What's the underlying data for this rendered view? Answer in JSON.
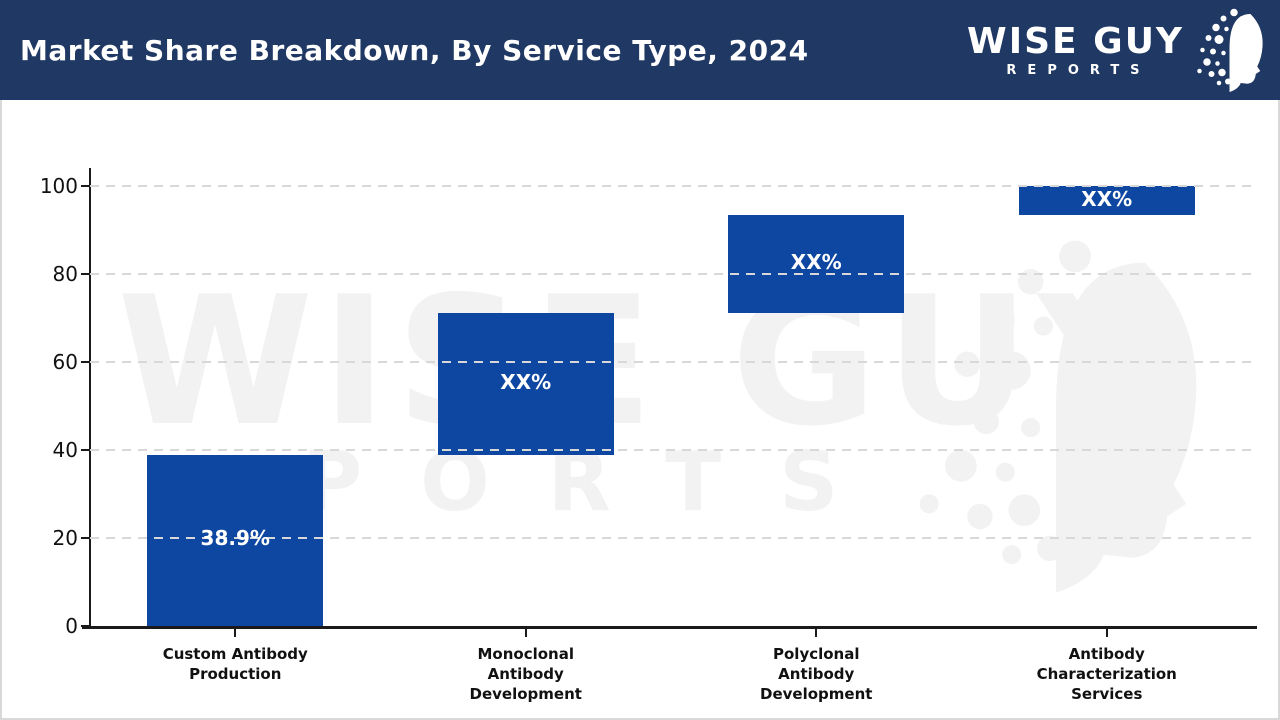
{
  "header": {
    "title": "Market Share Breakdown, By Service Type, 2024",
    "bg_color": "#1f3864",
    "logo": {
      "line1": "WISE GUY",
      "line2": "REPORTS"
    }
  },
  "watermark": {
    "line1": "WISE GUY",
    "line2": "PORTS"
  },
  "chart_data": {
    "type": "bar",
    "subtype": "waterfall-stacked-percentage",
    "title": "Market Share Breakdown, By Service Type, 2024",
    "categories": [
      "Custom Antibody Production",
      "Monoclonal Antibody Development",
      "Polyclonal Antibody Development",
      "Antibody Characterization Services"
    ],
    "category_label_lines": [
      [
        "Custom Antibody",
        "Production"
      ],
      [
        "Monoclonal",
        "Antibody",
        "Development"
      ],
      [
        "Polyclonal",
        "Antibody",
        "Development"
      ],
      [
        "Antibody",
        "Characterization",
        "Services"
      ]
    ],
    "series": [
      {
        "name": "Custom Antibody Production",
        "start": 0,
        "end": 38.9,
        "label": "38.9%"
      },
      {
        "name": "Monoclonal Antibody Development",
        "start": 38.9,
        "end": 71.2,
        "label": "XX%"
      },
      {
        "name": "Polyclonal Antibody Development",
        "start": 71.2,
        "end": 93.3,
        "label": "XX%"
      },
      {
        "name": "Antibody Characterization Services",
        "start": 93.3,
        "end": 100,
        "label": "XX%"
      }
    ],
    "xlabel": "",
    "ylabel": "",
    "ylim": [
      0,
      100
    ],
    "yticks": [
      0,
      20,
      40,
      60,
      80,
      100
    ],
    "grid": "horizontal-dashed",
    "legend_position": "none",
    "bar_color": "#0d47a1",
    "bar_label_color": "#ffffff",
    "axis_color": "#1a1a1a",
    "grid_color": "#d8d8d8"
  }
}
